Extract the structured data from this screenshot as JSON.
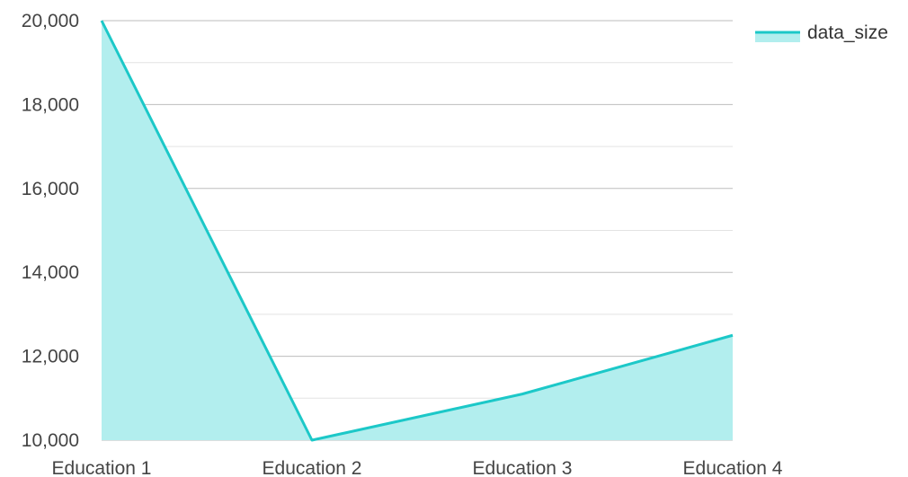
{
  "chart_data": {
    "type": "area",
    "categories": [
      "Education 1",
      "Education 2",
      "Education 3",
      "Education 4"
    ],
    "series": [
      {
        "name": "data_size",
        "values": [
          20000,
          10000,
          11100,
          12500
        ]
      }
    ],
    "yticks": [
      "10,000",
      "12,000",
      "14,000",
      "16,000",
      "18,000",
      "20,000"
    ],
    "ylim": [
      10000,
      20000
    ],
    "grid": true,
    "legend_position": "top-right",
    "colors": {
      "line": "#1cc8c8",
      "fill": "#b2eeee",
      "grid_major": "#bdbdbd",
      "grid_minor": "#e3e3e3"
    }
  }
}
